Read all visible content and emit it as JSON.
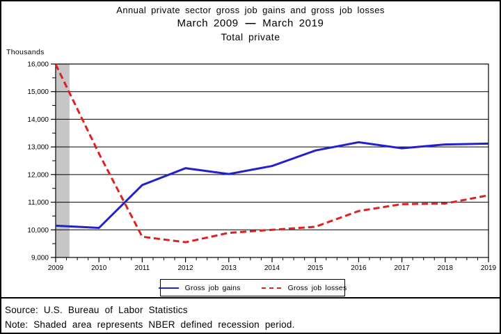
{
  "footer": {
    "source": "Source: U.S. Bureau of Labor Statistics",
    "note": "Note: Shaded area represents NBER defined recession period."
  },
  "chart_data": {
    "type": "line",
    "title": "Annual private sector gross job gains and gross job losses",
    "subtitle_left": "March 2009",
    "subtitle_dash": "—",
    "subtitle_right": "March 2019",
    "group_subtitle": "Total private",
    "unit_label": "Thousands",
    "grid": "horizontal",
    "legend_position": "bottom-center",
    "xlim": [
      2009,
      2019
    ],
    "ylim": [
      9000,
      16000
    ],
    "ytick_step": 1000,
    "yticks": [
      9000,
      10000,
      11000,
      12000,
      13000,
      14000,
      15000,
      16000
    ],
    "ytick_labels": [
      "9,000",
      "10,000",
      "11,000",
      "12,000",
      "13,000",
      "14,000",
      "15,000",
      "16,000"
    ],
    "x": [
      2009,
      2010,
      2011,
      2012,
      2013,
      2014,
      2015,
      2016,
      2017,
      2018,
      2019
    ],
    "x_labels": [
      "2009",
      "2010",
      "2011",
      "2012",
      "2013",
      "2014",
      "2015",
      "2016",
      "2017",
      "2018",
      "2019"
    ],
    "x_minor_ticks_per_year": 4,
    "recession_band": {
      "from": 2009.0,
      "to": 2009.32,
      "color": "#c6c6c6"
    },
    "series": [
      {
        "name": "Gross job gains",
        "color": "#2222cc",
        "line_style": "solid",
        "values": [
          10150,
          10070,
          11620,
          12230,
          12020,
          12310,
          12870,
          13170,
          12950,
          13090,
          13120
        ]
      },
      {
        "name": "Gross job losses",
        "color": "#e02020",
        "line_style": "dashed",
        "values": [
          15990,
          12760,
          9750,
          9550,
          9890,
          10000,
          10110,
          10680,
          10930,
          10950,
          11250
        ]
      }
    ]
  }
}
